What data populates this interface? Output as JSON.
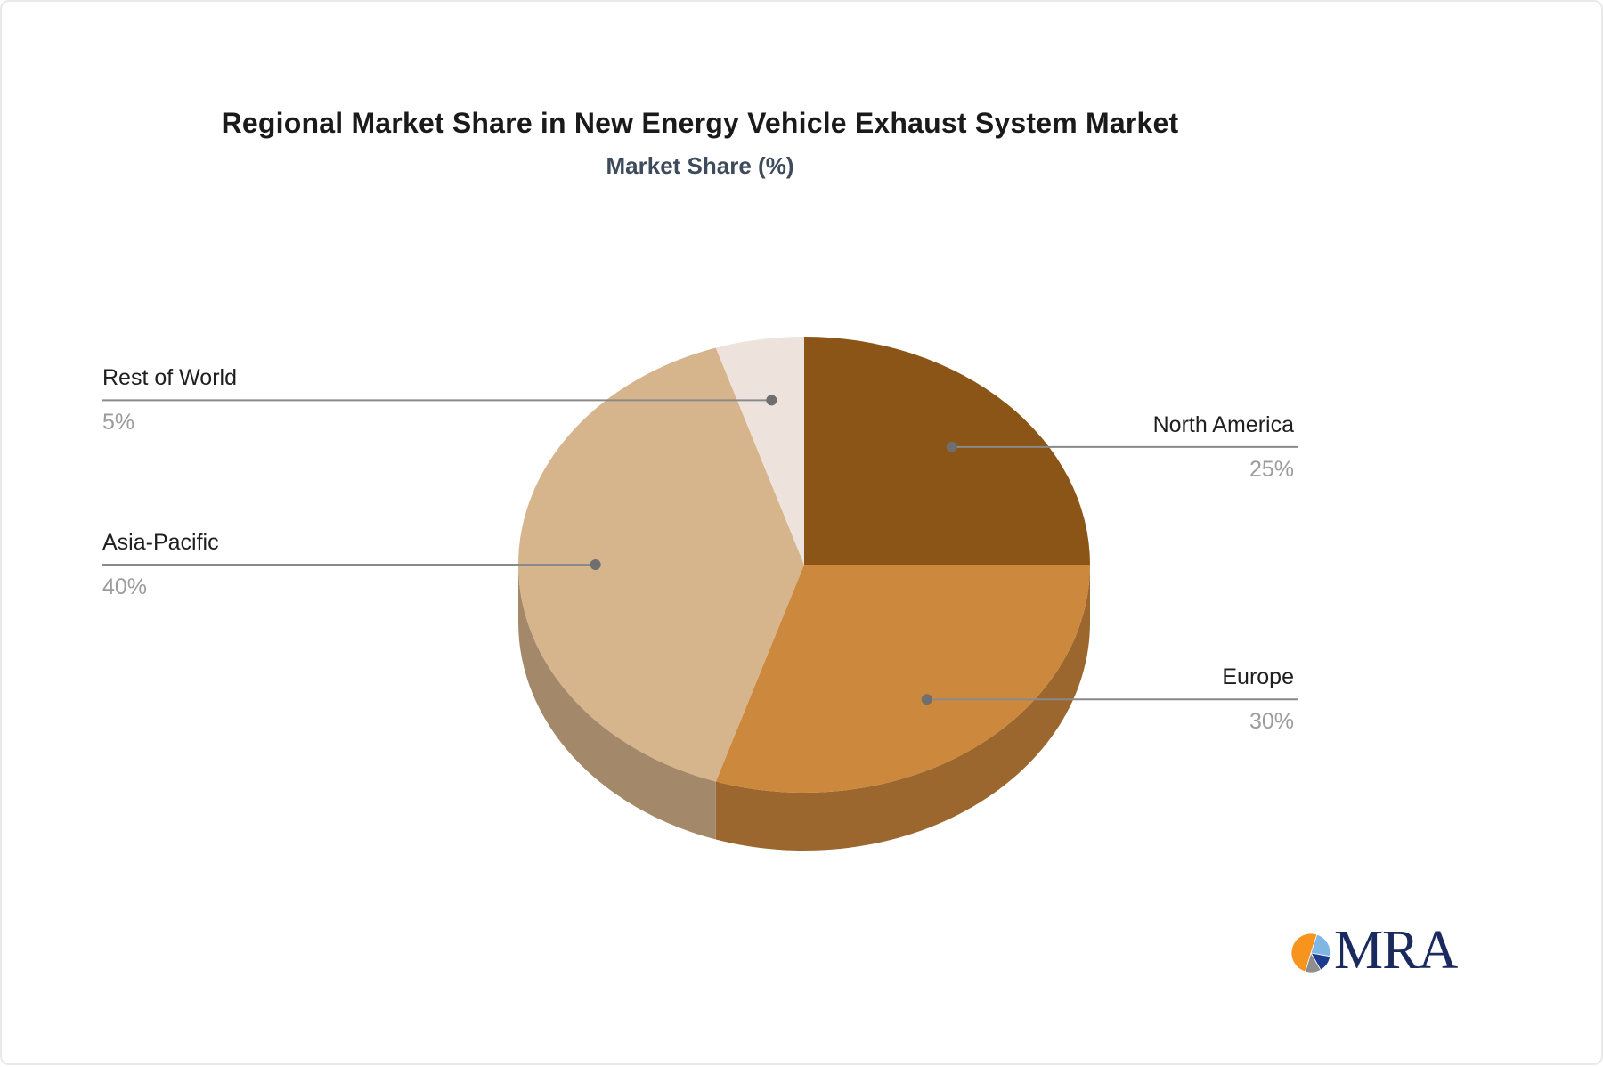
{
  "title": "Regional Market Share in New Energy Vehicle Exhaust System Market",
  "subtitle": "Market Share (%)",
  "logo": {
    "text": "MRA"
  },
  "colors": {
    "title_text": "#1a1a1a",
    "subtitle_text": "#3d4b5c",
    "label_text": "#1f1f1f",
    "pct_text": "#9c9c9c",
    "leader_line": "#8a8a8a",
    "leader_dot": "#6f6f6f",
    "logo_orange": "#f7941d",
    "logo_lightblue": "#7eb6e4",
    "logo_navy": "#1d3c8f",
    "logo_gray": "#8e8e8e",
    "logo_text_navy": "#1b2a5e"
  },
  "chart_data": {
    "type": "pie",
    "title": "Regional Market Share in New Energy Vehicle Exhaust System Market",
    "subtitle": "Market Share (%)",
    "unit": "%",
    "effect": "3d",
    "start_angle_deg": 0,
    "direction": "clockwise",
    "legend_position": "none",
    "slices": [
      {
        "label": "North America",
        "value": 25,
        "pct": "25%",
        "color": "#8b5517"
      },
      {
        "label": "Europe",
        "value": 30,
        "pct": "30%",
        "color": "#cc883c"
      },
      {
        "label": "Asia-Pacific",
        "value": 40,
        "pct": "40%",
        "color": "#d6b48c"
      },
      {
        "label": "Rest of World",
        "value": 5,
        "pct": "5%",
        "color": "#ede3dc"
      }
    ]
  }
}
